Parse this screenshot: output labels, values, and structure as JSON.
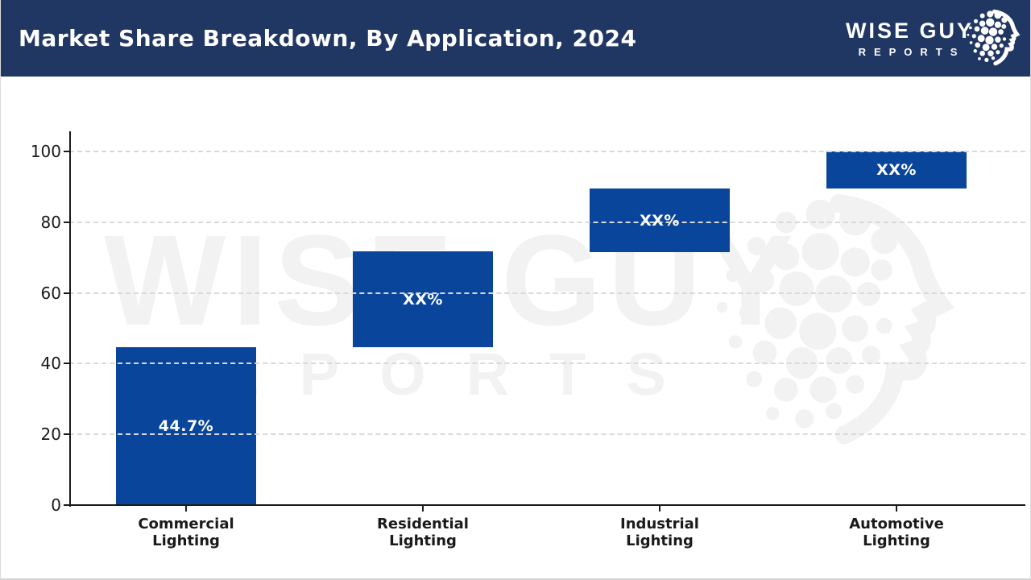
{
  "header": {
    "logo": {
      "line1": "WISE GUY",
      "line2": "REPORTS"
    }
  },
  "watermark": {
    "line1": "WISE GUY",
    "line2": "REPORTS"
  },
  "colors": {
    "header_background": "#213763",
    "bar_fill": "#0a459c",
    "bar_label": "#ffffff",
    "grid": "#d9d9d9",
    "axis": "#1a1a1a",
    "watermark": "#f2f2f2"
  },
  "chart_data": {
    "type": "bar",
    "subtype": "waterfall-floating-segments",
    "title": "Market Share Breakdown, By Application, 2024",
    "categories": [
      "Commercial\nLighting",
      "Residential\nLighting",
      "Industrial\nLighting",
      "Automotive\nLighting"
    ],
    "series": [
      {
        "category": "Commercial Lighting",
        "start": 0,
        "end": 44.7,
        "label": "44.7%"
      },
      {
        "category": "Residential Lighting",
        "start": 44.7,
        "end": 71.7,
        "label": "XX%"
      },
      {
        "category": "Industrial Lighting",
        "start": 71.7,
        "end": 89.6,
        "label": "XX%"
      },
      {
        "category": "Automotive Lighting",
        "start": 89.6,
        "end": 100,
        "label": "XX%"
      }
    ],
    "xlabel": "",
    "ylabel": "",
    "ylim": [
      0,
      100
    ],
    "yticks": [
      0,
      20,
      40,
      60,
      80,
      100
    ],
    "grid": "horizontal-dashed",
    "legend": "none"
  }
}
